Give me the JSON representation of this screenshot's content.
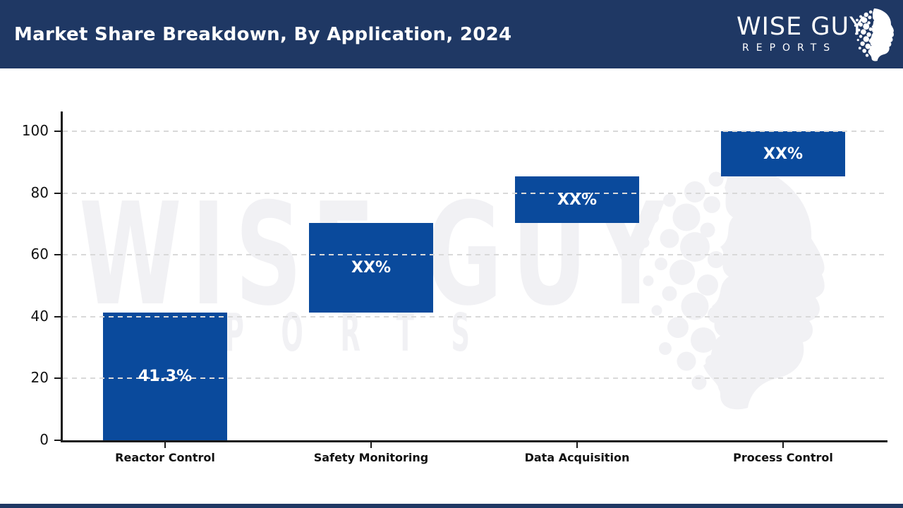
{
  "header": {
    "title": "Market Share Breakdown, By Application, 2024",
    "logo": {
      "wordmark": "WISE GUY",
      "subtext": "REPORTS"
    }
  },
  "watermark": {
    "line1": "WISE GUY",
    "line2": "REPORTS"
  },
  "colors": {
    "header_bg": "#1f3864",
    "bar": "#0a4a9c",
    "bar_label": "#ffffff",
    "grid": "#d9d9d9",
    "axis": "#1a1a1a",
    "watermark": "#f1f1f4",
    "title_text": "#ffffff"
  },
  "chart_data": {
    "type": "bar",
    "subtype": "floating-waterfall",
    "title": "Market Share Breakdown, By Application, 2024",
    "categories": [
      "Reactor Control",
      "Safety Monitoring",
      "Data Acquisition",
      "Process Control"
    ],
    "segments": [
      {
        "category": "Reactor Control",
        "start": 0,
        "end": 41.3,
        "label": "41.3%"
      },
      {
        "category": "Safety Monitoring",
        "start": 41.3,
        "end": 70.4,
        "label": "XX%"
      },
      {
        "category": "Data Acquisition",
        "start": 70.4,
        "end": 85.3,
        "label": "XX%"
      },
      {
        "category": "Process Control",
        "start": 85.3,
        "end": 100,
        "label": "XX%"
      }
    ],
    "xlabel": "",
    "ylabel": "",
    "ylim": [
      0,
      100
    ],
    "yticks": [
      0,
      20,
      40,
      60,
      80,
      100
    ],
    "grid": "horizontal-dashed",
    "legend": null
  }
}
